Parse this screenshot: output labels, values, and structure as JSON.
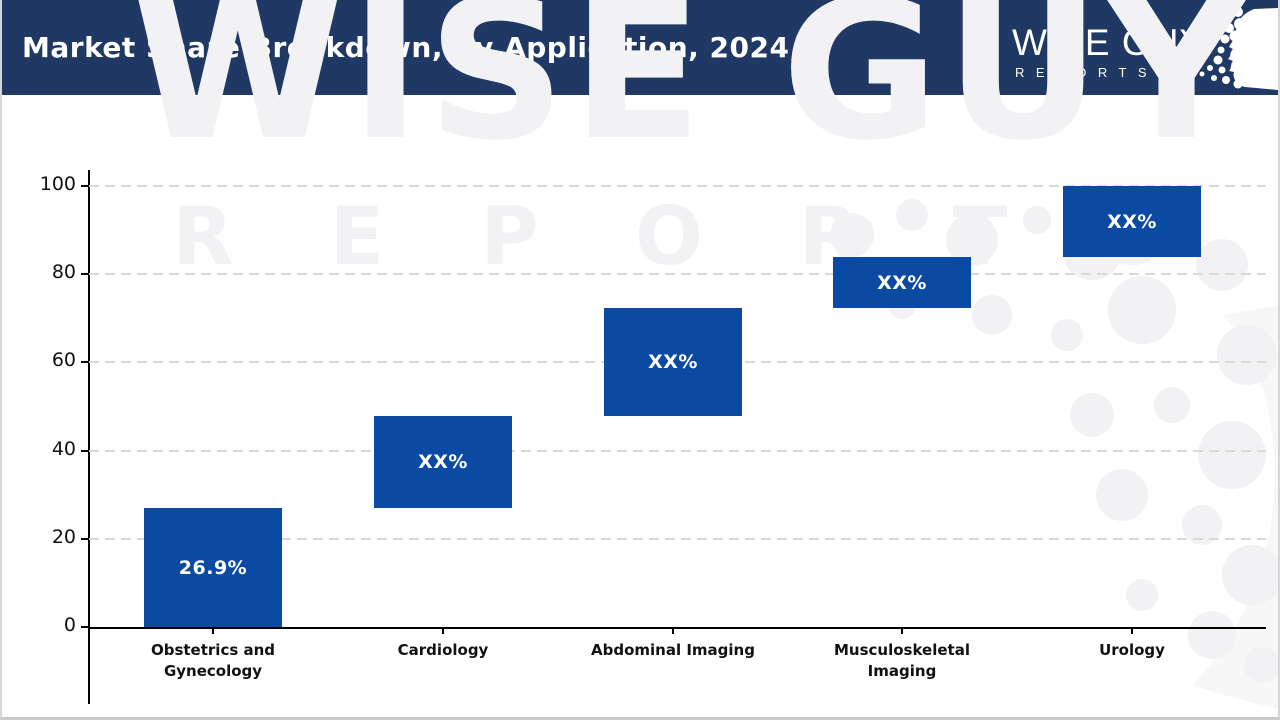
{
  "header": {
    "title": "Market Share Breakdown, By Application, 2024",
    "logo_line1": "WISE GUY",
    "logo_line2": "REPORTS"
  },
  "watermark": {
    "line1": "WISE GUY",
    "line2": "REPORTS"
  },
  "colors": {
    "header_bg": "#1F3864",
    "bar_fill": "#0B4AA2",
    "grid": "#D9D9D9",
    "axis": "#000000",
    "tick_label": "#111111",
    "bar_label": "#FFFFFF",
    "watermark": "#F2F2F4"
  },
  "chart_data": {
    "type": "bar",
    "subtype": "waterfall",
    "title": "Market Share Breakdown, By Application, 2024",
    "categories": [
      "Obstetrics and Gynecology",
      "Cardiology",
      "Abdominal Imaging",
      "Musculoskeletal Imaging",
      "Urology"
    ],
    "segments": [
      {
        "start": 0,
        "end": 26.9,
        "label": "26.9%"
      },
      {
        "start": 26.9,
        "end": 47.8,
        "label": "XX%"
      },
      {
        "start": 47.8,
        "end": 72.3,
        "label": "XX%"
      },
      {
        "start": 72.3,
        "end": 83.9,
        "label": "XX%"
      },
      {
        "start": 83.9,
        "end": 100,
        "label": "XX%"
      }
    ],
    "xlabel": "",
    "ylabel": "",
    "ylim": [
      0,
      100
    ],
    "yticks": [
      0,
      20,
      40,
      60,
      80,
      100
    ],
    "grid": "horizontal-dashed",
    "legend": "none"
  }
}
